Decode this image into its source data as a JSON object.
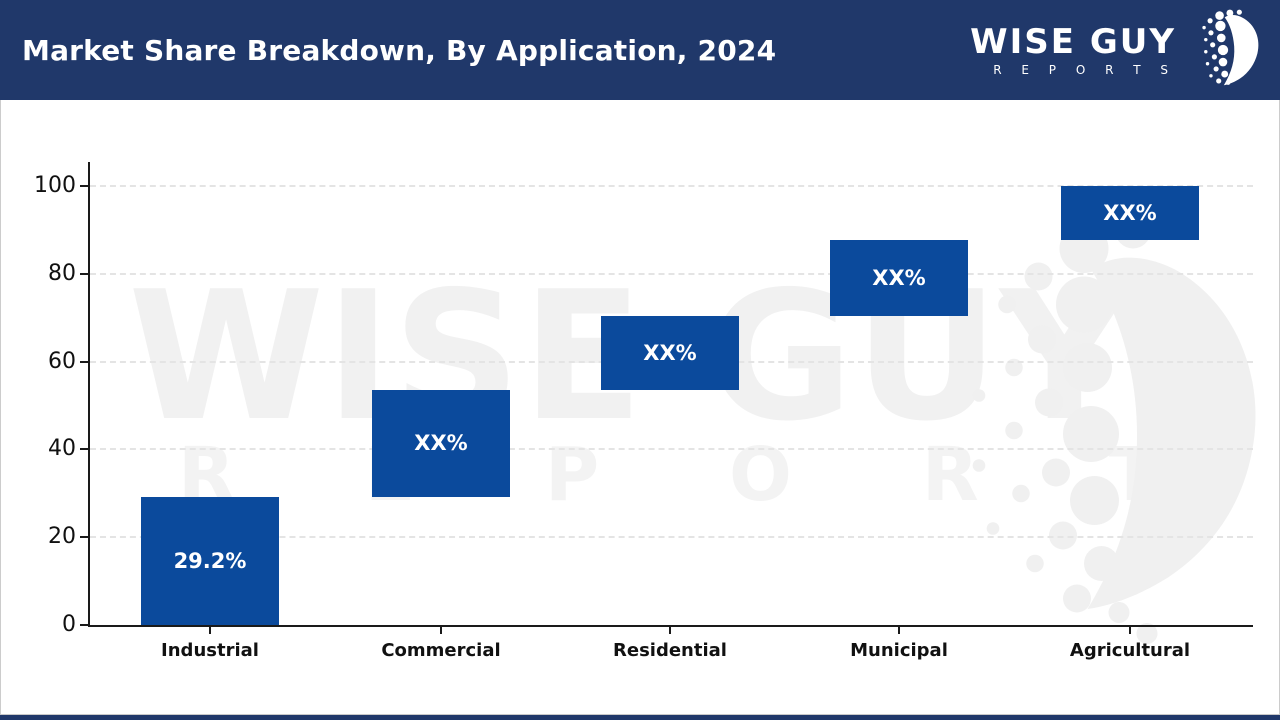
{
  "header": {
    "title": "Market Share Breakdown, By Application, 2024",
    "logo": {
      "line1": "WISE GUY",
      "line2": "R E P O R T S"
    }
  },
  "watermark": {
    "line1": "WISE GUY",
    "line2": "R E P O R T S"
  },
  "colors": {
    "header_bg": "#20386a",
    "bar": "#0b4a9c",
    "grid": "#e4e4e4",
    "watermark": "#f1f1f1"
  },
  "chart_data": {
    "type": "bar",
    "subtype": "waterfall",
    "title": "Market Share Breakdown, By Application, 2024",
    "categories": [
      "Industrial",
      "Commercial",
      "Residential",
      "Municipal",
      "Agricultural"
    ],
    "segments": [
      {
        "category": "Industrial",
        "start": 0,
        "end": 29.2,
        "label": "29.2%"
      },
      {
        "category": "Commercial",
        "start": 29.2,
        "end": 53.5,
        "label": "XX%"
      },
      {
        "category": "Residential",
        "start": 53.5,
        "end": 70.3,
        "label": "XX%"
      },
      {
        "category": "Municipal",
        "start": 70.3,
        "end": 87.6,
        "label": "XX%"
      },
      {
        "category": "Agricultural",
        "start": 87.6,
        "end": 100,
        "label": "XX%"
      }
    ],
    "xlabel": "",
    "ylabel": "",
    "ylim": [
      0,
      100
    ],
    "yticks": [
      0,
      20,
      40,
      60,
      80,
      100
    ],
    "grid": "horizontal-dashed",
    "legend": "none",
    "bar_color": "#0b4a9c"
  }
}
